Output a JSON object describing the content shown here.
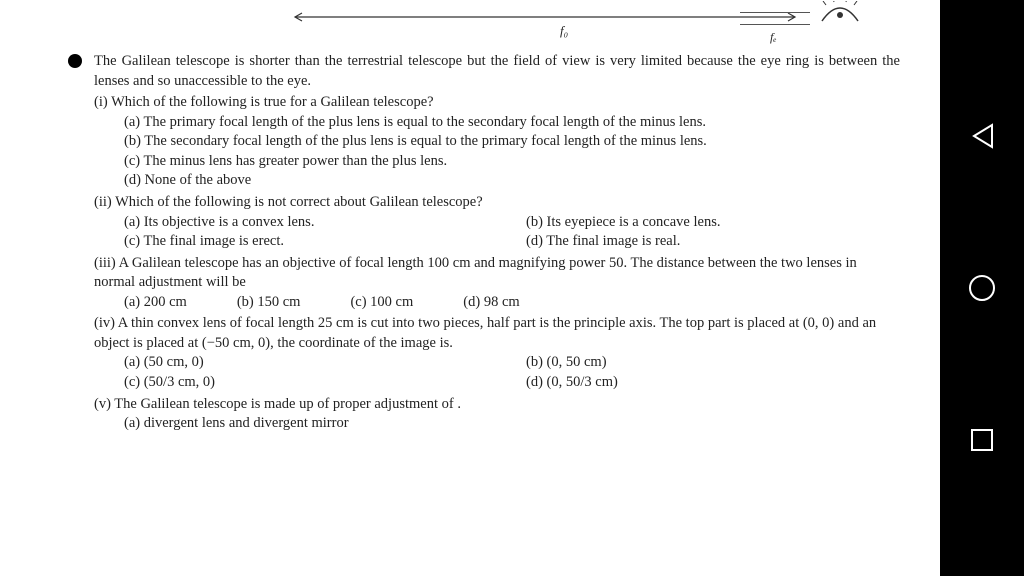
{
  "diagram": {
    "fo_label": "f₀",
    "fe_label": "fₑ"
  },
  "intro": "The Galilean telescope is shorter than the terrestrial telescope but the field of view is very limited because the eye ring is between the lenses and so unaccessible to the eye.",
  "questions": [
    {
      "num": "(i)",
      "text": "Which of the following is true for a Galilean telescope?",
      "layout": "block",
      "opts": [
        {
          "l": "(a)",
          "t": "The primary focal length of the plus lens is equal to the secondary focal length of the minus lens."
        },
        {
          "l": "(b)",
          "t": "The secondary focal length of the plus lens is equal to the primary focal length of the minus lens."
        },
        {
          "l": "(c)",
          "t": "The minus lens has greater power than the plus lens."
        },
        {
          "l": "(d)",
          "t": "None of the above"
        }
      ]
    },
    {
      "num": "(ii)",
      "text": "Which of the following is not correct about Galilean telescope?",
      "layout": "2col",
      "opts": [
        {
          "l": "(a)",
          "t": "Its objective is a convex lens."
        },
        {
          "l": "(b)",
          "t": "Its eyepiece is a concave lens."
        },
        {
          "l": "(c)",
          "t": "The final image is erect."
        },
        {
          "l": "(d)",
          "t": "The final image is real."
        }
      ]
    },
    {
      "num": "(iii)",
      "text": "A Galilean telescope has an objective of focal length 100 cm and magnifying power 50. The distance between the two lenses in normal adjustment will be",
      "layout": "inline",
      "opts": [
        {
          "l": "(a)",
          "t": "200 cm"
        },
        {
          "l": "(b)",
          "t": "150 cm"
        },
        {
          "l": "(c)",
          "t": "100 cm"
        },
        {
          "l": "(d)",
          "t": "98 cm"
        }
      ]
    },
    {
      "num": "(iv)",
      "text": "A thin convex lens of focal length 25 cm is cut into two pieces, half part is the principle axis. The top part is placed at (0, 0) and an object is placed at (−50 cm, 0), the coordinate of the image is.",
      "layout": "2col",
      "opts": [
        {
          "l": "(a)",
          "t": "(50 cm, 0)"
        },
        {
          "l": "(b)",
          "t": "(0, 50 cm)"
        },
        {
          "l": "(c)",
          "t": "(50/3 cm, 0)"
        },
        {
          "l": "(d)",
          "t": "(0, 50/3 cm)"
        }
      ]
    },
    {
      "num": "(v)",
      "text": "The Galilean telescope is made up of proper adjustment of .",
      "layout": "block",
      "opts": [
        {
          "l": "(a)",
          "t": "divergent lens and divergent mirror"
        }
      ]
    }
  ]
}
